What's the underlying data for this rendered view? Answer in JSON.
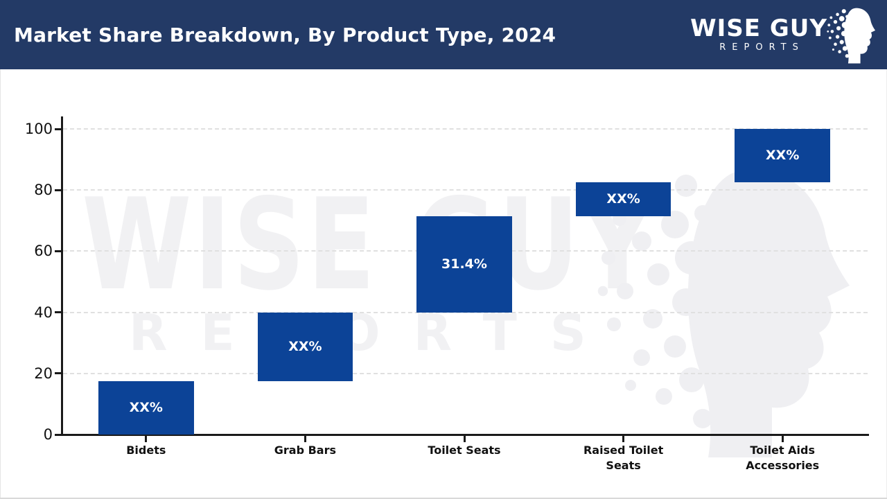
{
  "header": {
    "title": "Market Share Breakdown, By Product Type, 2024",
    "logo": {
      "brand_line1": "WISE GUY",
      "brand_line2": "REPORTS"
    }
  },
  "watermark": {
    "text_line1": "WISE GUY",
    "text_line2": "REPORTS"
  },
  "icons": {
    "logo_head": "wiseguy-dotted-head",
    "watermark_head": "wiseguy-dotted-head"
  },
  "colors": {
    "header_bg": "#233a66",
    "bar_fill": "#0c4397",
    "bar_label_text": "#ffffff",
    "axis": "#1a1a1a",
    "gridline": "#e0e0e0",
    "tick_text": "#111111",
    "title_text": "#ffffff",
    "watermark": "#f1f1f3",
    "page_bg": "#ffffff"
  },
  "chart_data": {
    "type": "bar",
    "subtype": "waterfall",
    "title": "Market Share Breakdown, By Product Type, 2024",
    "categories": [
      "Bidets",
      "Grab Bars",
      "Toilet Seats",
      "Raised Toilet Seats",
      "Toilet Aids Accessories"
    ],
    "bars": [
      {
        "category": "Bidets",
        "label": "XX%",
        "start": 0,
        "end": 17.5
      },
      {
        "category": "Grab Bars",
        "label": "XX%",
        "start": 17.5,
        "end": 40.0
      },
      {
        "category": "Toilet Seats",
        "label": "31.4%",
        "start": 40.0,
        "end": 71.4
      },
      {
        "category": "Raised Toilet Seats",
        "label": "XX%",
        "start": 71.4,
        "end": 82.6
      },
      {
        "category": "Toilet Aids Accessories",
        "label": "XX%",
        "start": 82.6,
        "end": 100.0
      }
    ],
    "xlabel": "",
    "ylabel": "",
    "ylim": [
      0,
      100
    ],
    "yticks": [
      0,
      20,
      40,
      60,
      80,
      100
    ],
    "grid": "horizontal-dashed",
    "legend": "none"
  }
}
